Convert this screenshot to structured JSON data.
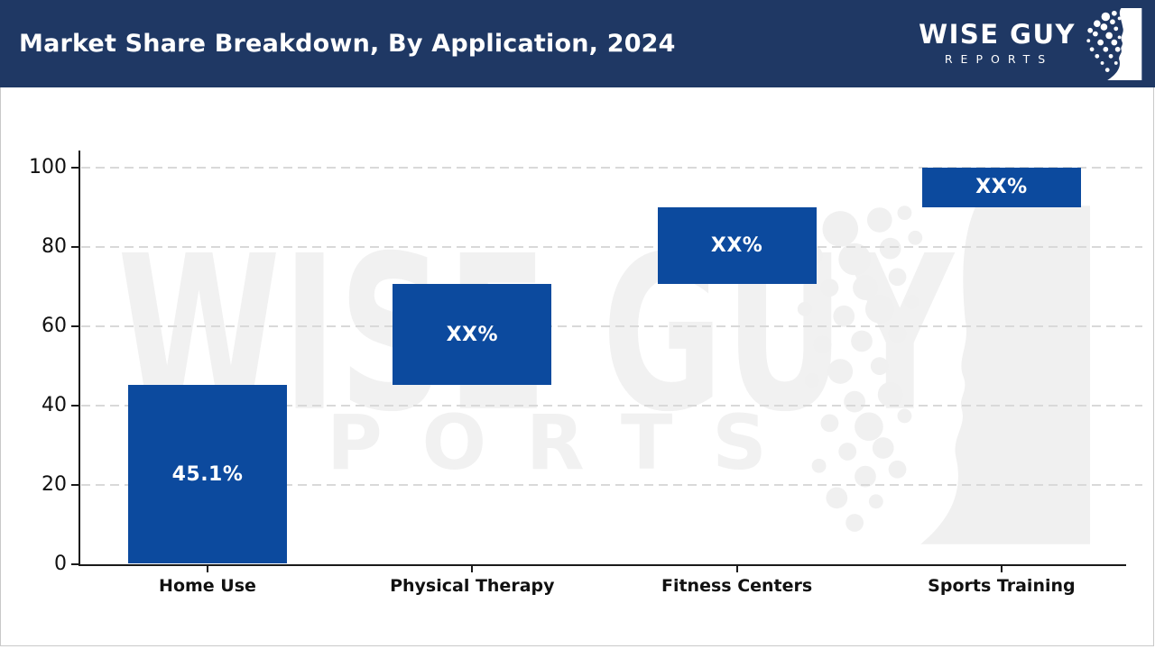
{
  "header": {
    "title": "Market Share Breakdown, By Application, 2024",
    "logo": {
      "wordmark": "WISE GUY",
      "subtext": "REPORTS"
    }
  },
  "watermark": {
    "line1": "WISE GUY",
    "line2": "REPORTS"
  },
  "chart_data": {
    "type": "bar",
    "subtype": "waterfall-floating-bars",
    "title": "Market Share Breakdown, By Application, 2024",
    "categories": [
      "Home Use",
      "Physical Therapy",
      "Fitness Centers",
      "Sports Training"
    ],
    "series": [
      {
        "name": "Market share (%)",
        "segments": [
          {
            "category": "Home Use",
            "start": 0,
            "end": 45.1,
            "label": "45.1%"
          },
          {
            "category": "Physical Therapy",
            "start": 45.1,
            "end": 70.5,
            "label": "XX%"
          },
          {
            "category": "Fitness Centers",
            "start": 70.5,
            "end": 89.8,
            "label": "XX%"
          },
          {
            "category": "Sports Training",
            "start": 89.8,
            "end": 100,
            "label": "XX%"
          }
        ]
      }
    ],
    "yticks": [
      0,
      20,
      40,
      60,
      80,
      100
    ],
    "ylim": [
      0,
      104
    ],
    "xlabel": "",
    "ylabel": "",
    "legend": "none",
    "grid": "horizontal-dashed",
    "bar_color": "#0c4a9e",
    "value_label_color": "#ffffff"
  },
  "colors": {
    "header_bg": "#1f3864",
    "bar": "#0c4a9e",
    "grid": "#d9d9d9",
    "axis": "#1a1a1a",
    "watermark": "#f1f1f1",
    "card_border": "#c9c9c9"
  }
}
